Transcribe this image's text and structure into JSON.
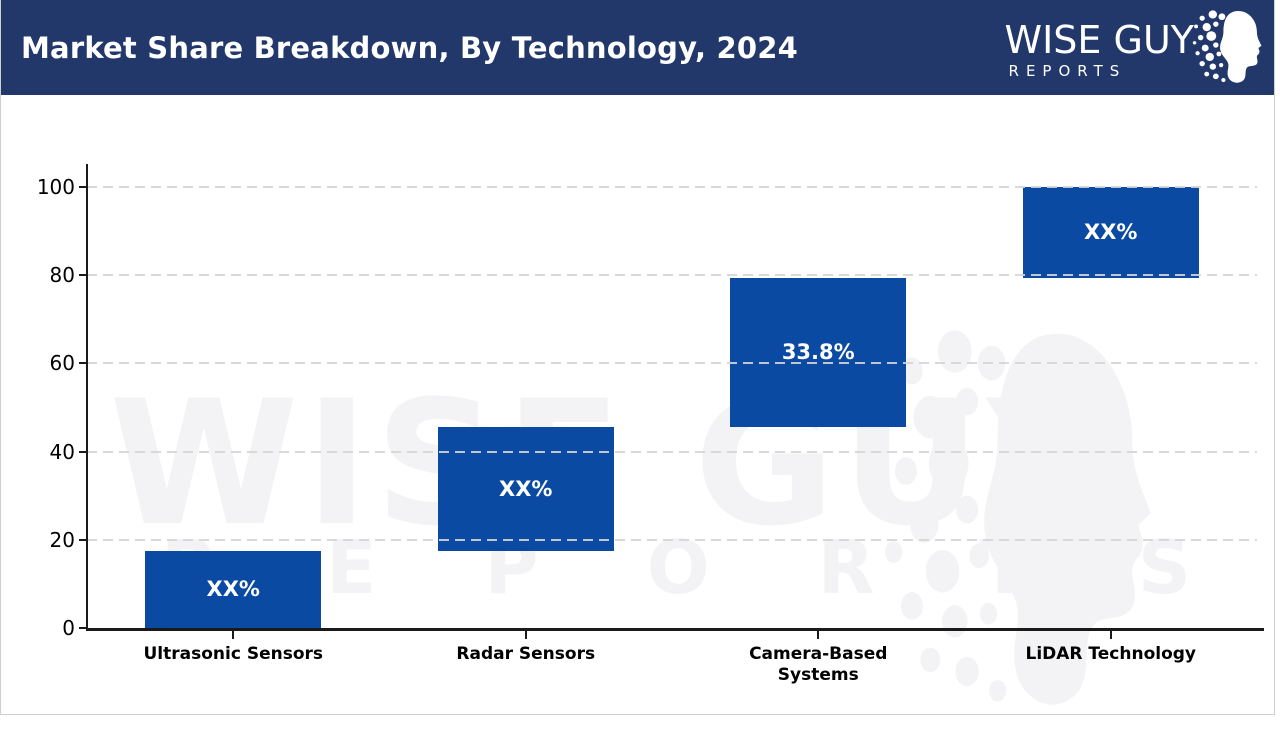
{
  "header": {
    "title": "Market Share Breakdown, By Technology, 2024",
    "logo": {
      "line1": "WISE GUY",
      "line2": "REPORTS"
    }
  },
  "watermark": {
    "line1": "WISE GUY",
    "line2": "REPORTS"
  },
  "chart_data": {
    "type": "bar",
    "subtype": "floating-breakdown-bars",
    "title": "Market Share Breakdown, By Technology, 2024",
    "categories": [
      "Ultrasonic Sensors",
      "Radar Sensors",
      "Camera-Based\nSystems",
      "LiDAR Technology"
    ],
    "bars": [
      {
        "category": "Ultrasonic Sensors",
        "start": 0,
        "end": 17.5,
        "label": "XX%"
      },
      {
        "category": "Radar Sensors",
        "start": 17.5,
        "end": 45.6,
        "label": "XX%"
      },
      {
        "category": "Camera-Based Systems",
        "start": 45.6,
        "end": 79.4,
        "label": "33.8%"
      },
      {
        "category": "LiDAR Technology",
        "start": 79.4,
        "end": 100,
        "label": "XX%"
      }
    ],
    "yticks": [
      0,
      20,
      40,
      60,
      80,
      100
    ],
    "ylim": [
      0,
      100
    ],
    "xlabel": "",
    "ylabel": "",
    "grid": "horizontal-dashed",
    "legend": "none",
    "colors": {
      "bar": "#0B4AA2",
      "bar_label": "#FFFFFF",
      "grid": "#D5D5D5",
      "axis": "#1A1A1A",
      "header_bg": "#22386B",
      "watermark": "#F3F3F5"
    }
  }
}
